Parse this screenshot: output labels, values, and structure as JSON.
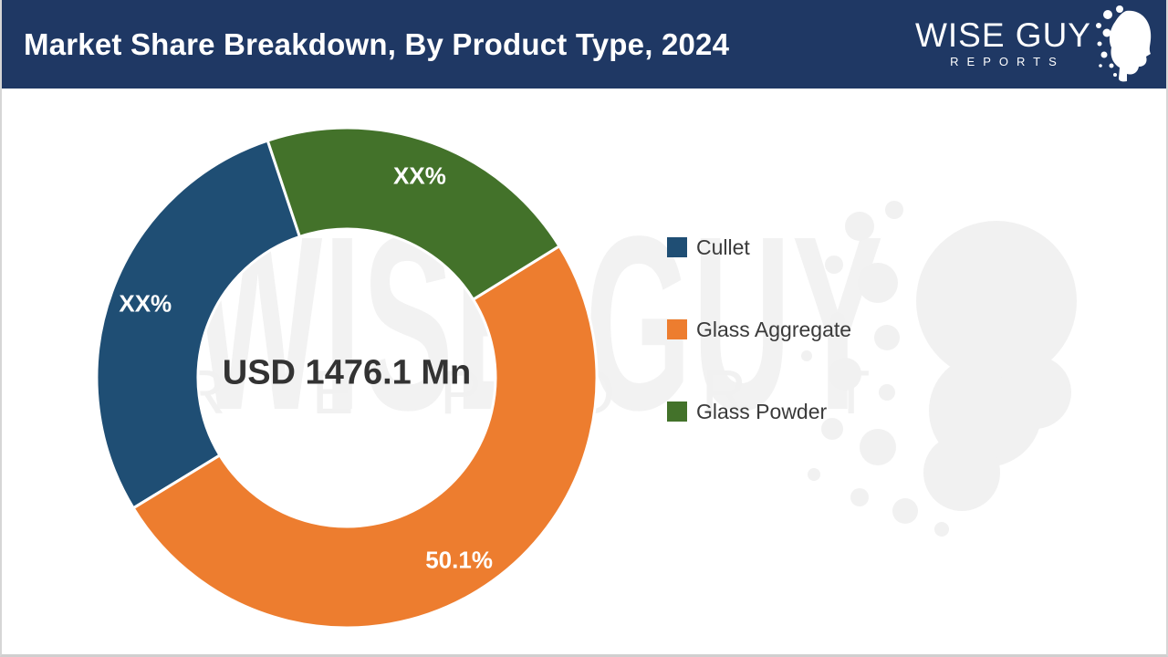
{
  "header": {
    "title": "Market Share Breakdown, By Product Type, 2024",
    "logo": {
      "line1": "WISE GUY",
      "line2": "REPORTS"
    }
  },
  "watermark": {
    "line1": "WISE GUY",
    "line2": "R E P O R T S"
  },
  "chart_data": {
    "type": "pie",
    "subtype": "donut",
    "title": "Market Share Breakdown, By Product Type, 2024",
    "center_label": "USD 1476.1 Mn",
    "start_angle_deg": 108.45,
    "direction": "counterclockwise",
    "legend_position": "right",
    "segments": [
      {
        "name": "Cullet",
        "label": "XX%",
        "percent": 28.6,
        "color": "#1F4E74"
      },
      {
        "name": "Glass Aggregate",
        "label": "50.1%",
        "percent": 50.1,
        "color": "#ED7D2F"
      },
      {
        "name": "Glass Powder",
        "label": "XX%",
        "percent": 21.3,
        "color": "#43722A"
      }
    ]
  },
  "legend": {
    "items": [
      {
        "label": "Cullet",
        "color": "#1F4E74"
      },
      {
        "label": "Glass Aggregate",
        "color": "#ED7D2F"
      },
      {
        "label": "Glass Powder",
        "color": "#43722A"
      }
    ]
  }
}
